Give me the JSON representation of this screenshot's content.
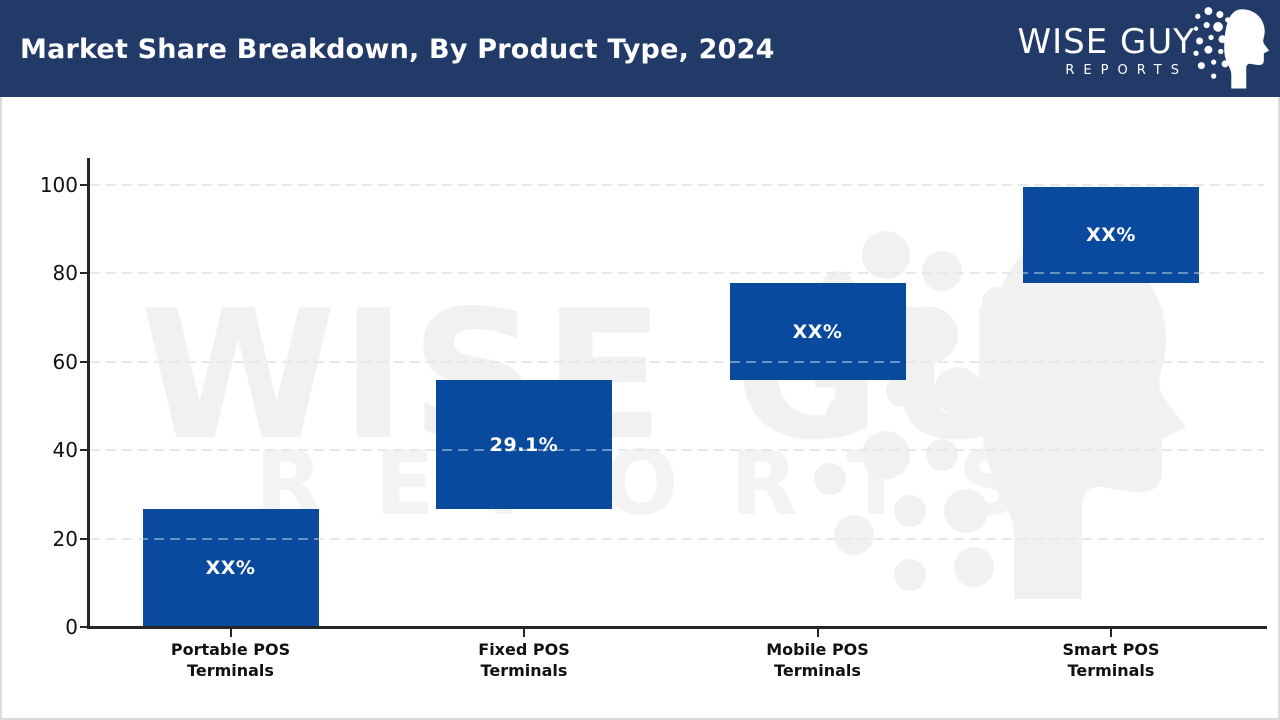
{
  "header": {
    "title": "Market Share Breakdown, By Product Type, 2024",
    "brand": {
      "name": "WISE GUY REPORTS",
      "line1": "WISE GUY",
      "line2": "REPORTS"
    }
  },
  "watermark": {
    "line1": "WISE GUY",
    "line2": "REPORTS"
  },
  "chart_data": {
    "type": "bar",
    "subtype": "waterfall",
    "title": "Market Share Breakdown, By Product Type, 2024",
    "categories": [
      "Portable POS Terminals",
      "Fixed POS Terminals",
      "Mobile POS Terminals",
      "Smart POS Terminals"
    ],
    "categories_lines": [
      [
        "Portable POS",
        "Terminals"
      ],
      [
        "Fixed POS",
        "Terminals"
      ],
      [
        "Mobile POS",
        "Terminals"
      ],
      [
        "Smart POS",
        "Terminals"
      ]
    ],
    "segments": [
      {
        "category": "Portable POS Terminals",
        "label": "XX%",
        "start": 0,
        "end": 26.7
      },
      {
        "category": "Fixed POS Terminals",
        "label": "29.1%",
        "start": 26.7,
        "end": 55.8
      },
      {
        "category": "Mobile POS Terminals",
        "label": "XX%",
        "start": 55.8,
        "end": 77.9
      },
      {
        "category": "Smart POS Terminals",
        "label": "XX%",
        "start": 77.9,
        "end": 99.5
      }
    ],
    "yticks": [
      0,
      20,
      40,
      60,
      80,
      100
    ],
    "ylim": [
      0,
      106
    ],
    "xlabel": "",
    "ylabel": "",
    "legend": null,
    "grid": "horizontal-dashed",
    "colors": {
      "bar": "#0a4a9e",
      "grid": "#d9d9d9",
      "axis": "#262626",
      "text": "#111111",
      "header_bg": "#223a67",
      "watermark": "#f1f1f2"
    }
  }
}
